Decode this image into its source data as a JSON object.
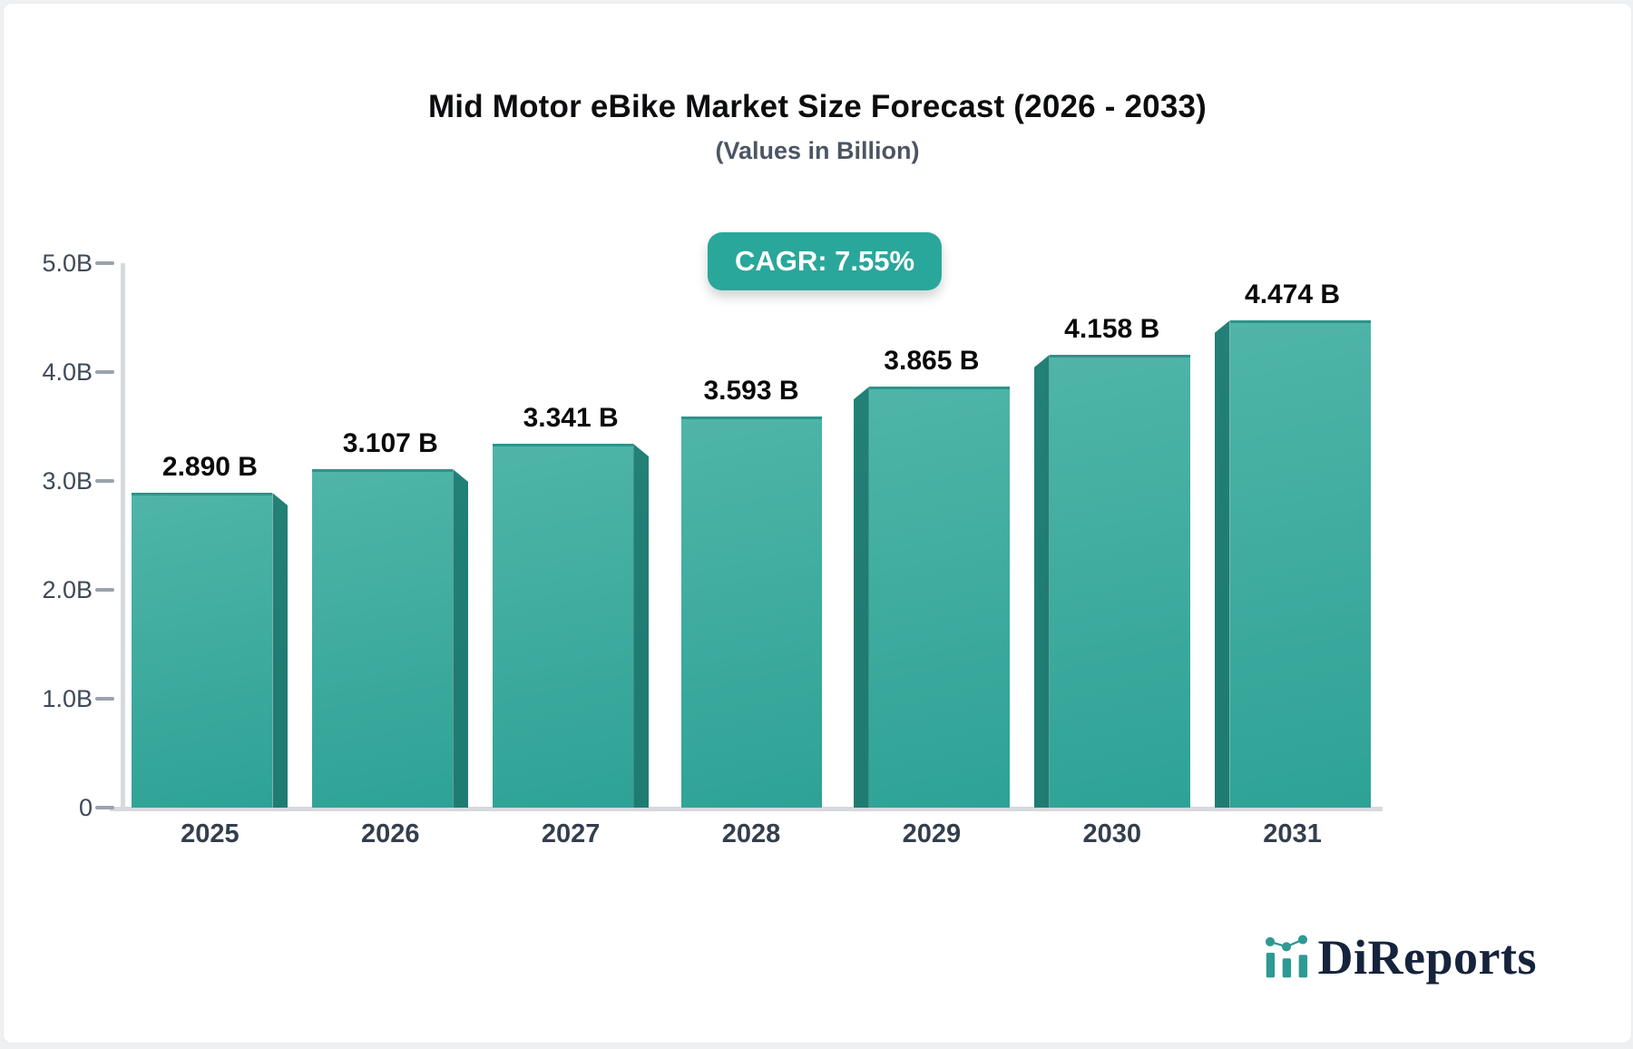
{
  "brand": {
    "name": "DiReports",
    "icon": "bar-line-chart-icon"
  },
  "colors": {
    "bar_face_top": "#4fb5a8",
    "bar_face_bottom": "#2ea296",
    "bar_side": "#1f7c73",
    "bar_top_edge": "#2d9489",
    "badge_bg": "#29a79a",
    "axis": "#d6d9dd",
    "tick_dash": "#9aa3ad",
    "ytick_text": "#3e4a59",
    "xtick_text": "#343e4d",
    "value_text": "#0a0a0a",
    "title_text": "#0c0d0f",
    "subtitle_text": "#4c5563",
    "brand_text": "#16233c",
    "brand_icon": "#2d9a93"
  },
  "chart_data": {
    "type": "bar",
    "title": "Mid Motor eBike Market Size Forecast (2026 - 2033)",
    "subtitle": "(Values in Billion)",
    "cagr_label": "CAGR: 7.55%",
    "categories": [
      "2025",
      "2026",
      "2027",
      "2028",
      "2029",
      "2030",
      "2031"
    ],
    "values": [
      2.89,
      3.107,
      3.341,
      3.593,
      3.865,
      4.158,
      4.474
    ],
    "value_labels": [
      "2.890 B",
      "3.107 B",
      "3.341 B",
      "3.593 B",
      "3.865 B",
      "4.158 B",
      "4.474 B"
    ],
    "ylim": [
      0,
      5
    ],
    "yticks": [
      {
        "v": 5,
        "label": "5.0B"
      },
      {
        "v": 4,
        "label": "4.0B"
      },
      {
        "v": 3,
        "label": "3.0B"
      },
      {
        "v": 2,
        "label": "2.0B"
      },
      {
        "v": 1,
        "label": "1.0B"
      },
      {
        "v": 0,
        "label": "0"
      }
    ],
    "grid": false,
    "legend": null,
    "bar_style": "3d-center-perspective"
  }
}
